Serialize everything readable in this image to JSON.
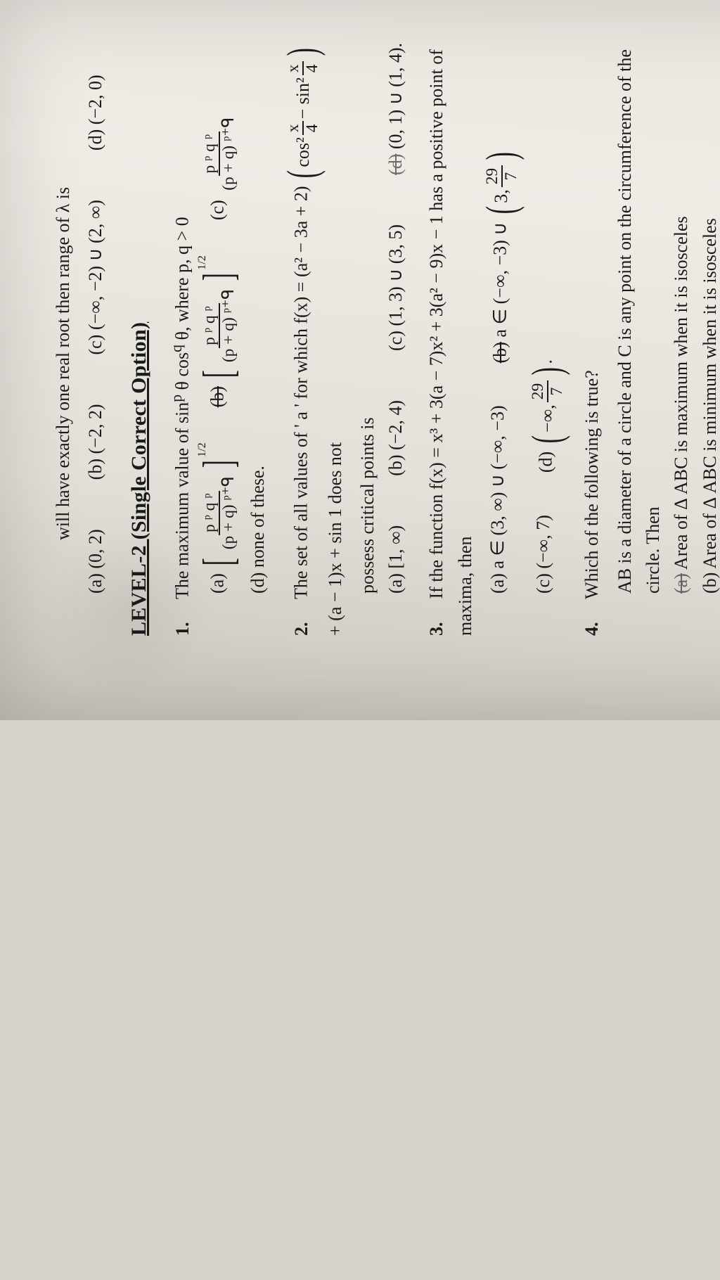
{
  "intro": {
    "tail": "will have exactly one real root then range of λ is",
    "opts": {
      "a": "(a) (0, 2)",
      "b": "(b) (−2, 2)",
      "c": "(c) (−∞, −2) ∪ (2, ∞)",
      "d": "(d) (−2, 0)"
    }
  },
  "section": "LEVEL-2 (Single Correct Option)",
  "q1": {
    "num": "1.",
    "stem_pre": "The maximum value of sin",
    "stem_p": "p",
    "stem_mid": " θ cos",
    "stem_q": "q",
    "stem_post": " θ,  where p, q > 0",
    "frac_num": "p ᵖ q ᵖ",
    "frac_den": "(p + q) ᵖ⁺ᑫ",
    "opt_a_label": "(a)",
    "opt_a_pow": "1/2",
    "opt_b_label": "(b)",
    "opt_b_pow": "1/2",
    "opt_c_label": "(c)",
    "opt_d": "(d) none of these."
  },
  "q2": {
    "num": "2.",
    "stem1": "The set of all values of ' a ' for which  f(x) = (a² − 3a + 2)",
    "paren_inner1": "cos²",
    "paren_frac1_num": "x",
    "paren_frac1_den": "4",
    "paren_inner2": " − sin²",
    "paren_frac2_num": "x",
    "paren_frac2_den": "4",
    "stem1_tail": " + (a − 1)x + sin 1  does not",
    "stem2": "possess critical points is",
    "opts": {
      "a": "(a) [1, ∞)",
      "b": "(b) (−2, 4)",
      "c": "(c) (1, 3) ∪ (3, 5)",
      "d": "(d) (0, 1) ∪ (1, 4)."
    }
  },
  "q3": {
    "num": "3.",
    "stem": "If the function  f(x) = x³ + 3(a − 7)x² + 3(a² − 9)x − 1  has a positive point of maxima, then",
    "opts": {
      "a": "(a) a ∈ (3, ∞) ∪ (−∞, −3)",
      "b_pre": "(b) a ∈ (−∞, −3) ∪ ",
      "b_br_l": "(",
      "b_br_top": "29",
      "b_br_bot": "7",
      "b_br_pre": "3, ",
      "b_br_r": ")",
      "c": "(c) (−∞, 7)",
      "d_pre": "(d) ",
      "d_br_l": "(",
      "d_br_pre": "−∞, ",
      "d_br_top": "29",
      "d_br_bot": "7",
      "d_br_r": ")",
      "d_post": "."
    }
  },
  "q4": {
    "num": "4.",
    "stem1": "Which of the following is true?",
    "stem2": "AB is a diameter of a circle and C is any point on the circumference of the circle. Then",
    "opts": {
      "a": "(a) Area of Δ ABC is maximum when it is isosceles",
      "b": "(b) Area of Δ ABC is minimum when it is isosceles",
      "c_tail": "of Δ ABC is minimum when it is isosceles"
    }
  }
}
